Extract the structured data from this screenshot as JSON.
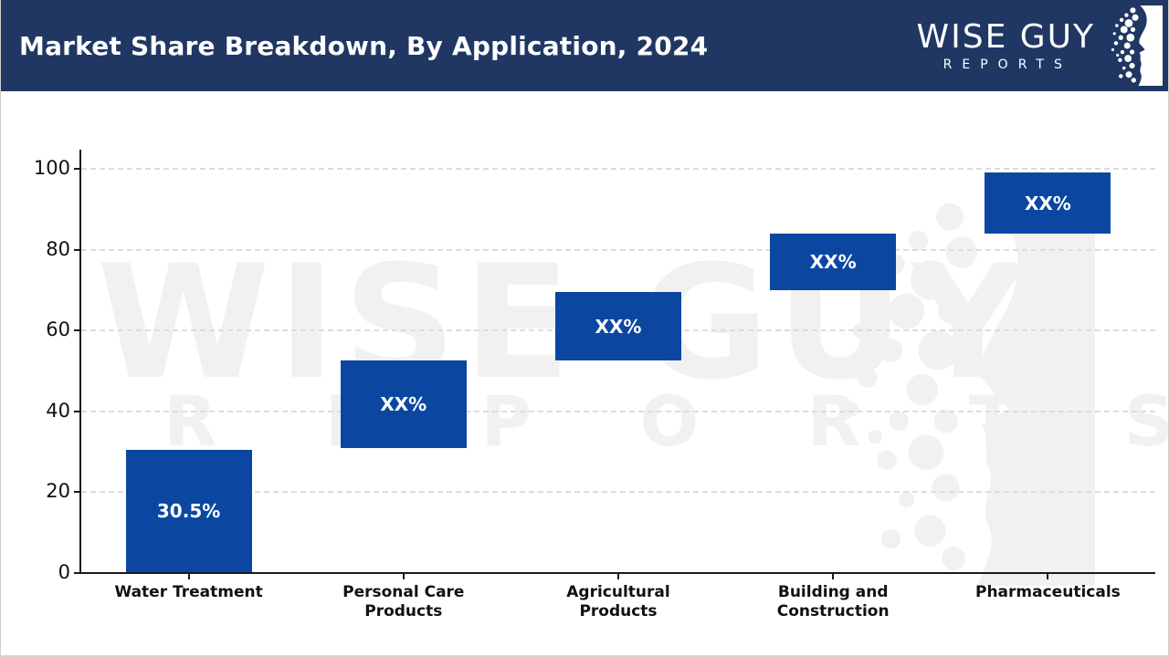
{
  "header": {
    "title": "Market Share Breakdown, By Application, 2024",
    "bg_color": "#203764",
    "logo": {
      "line1": "WISE GUY",
      "line2": "REPORTS"
    }
  },
  "watermark": {
    "line1": "WISE GUY",
    "line2": "R E P O R T S",
    "color": "#f1f1f1"
  },
  "chart_data": {
    "type": "bar",
    "subtype": "waterfall-floating-bars",
    "title": "Market Share Breakdown, By Application, 2024",
    "grid": "horizontal dashed",
    "legend": "none",
    "ylim": [
      0,
      105
    ],
    "y_ticks": [
      0,
      20,
      40,
      60,
      80,
      100
    ],
    "bar_color": "#0b47a1",
    "bar_label_color": "#ffffff",
    "categories": [
      "Water Treatment",
      "Personal Care Products",
      "Agricultural Products",
      "Building and Construction",
      "Pharmaceuticals"
    ],
    "segments": [
      {
        "category": "Water Treatment",
        "category_lines": [
          "Water Treatment"
        ],
        "start": 0,
        "end": 30.5,
        "value": 30.5,
        "label": "30.5%"
      },
      {
        "category": "Personal Care Products",
        "category_lines": [
          "Personal Care",
          "Products"
        ],
        "start": 31,
        "end": 52.5,
        "value": 21.5,
        "label": "XX%"
      },
      {
        "category": "Agricultural Products",
        "category_lines": [
          "Agricultural",
          "Products"
        ],
        "start": 52.5,
        "end": 69.5,
        "value": 17,
        "label": "XX%"
      },
      {
        "category": "Building and Construction",
        "category_lines": [
          "Building and",
          "Construction"
        ],
        "start": 70,
        "end": 84,
        "value": 14,
        "label": "XX%"
      },
      {
        "category": "Pharmaceuticals",
        "category_lines": [
          "Pharmaceuticals"
        ],
        "start": 84,
        "end": 99,
        "value": 15,
        "label": "XX%"
      }
    ]
  }
}
